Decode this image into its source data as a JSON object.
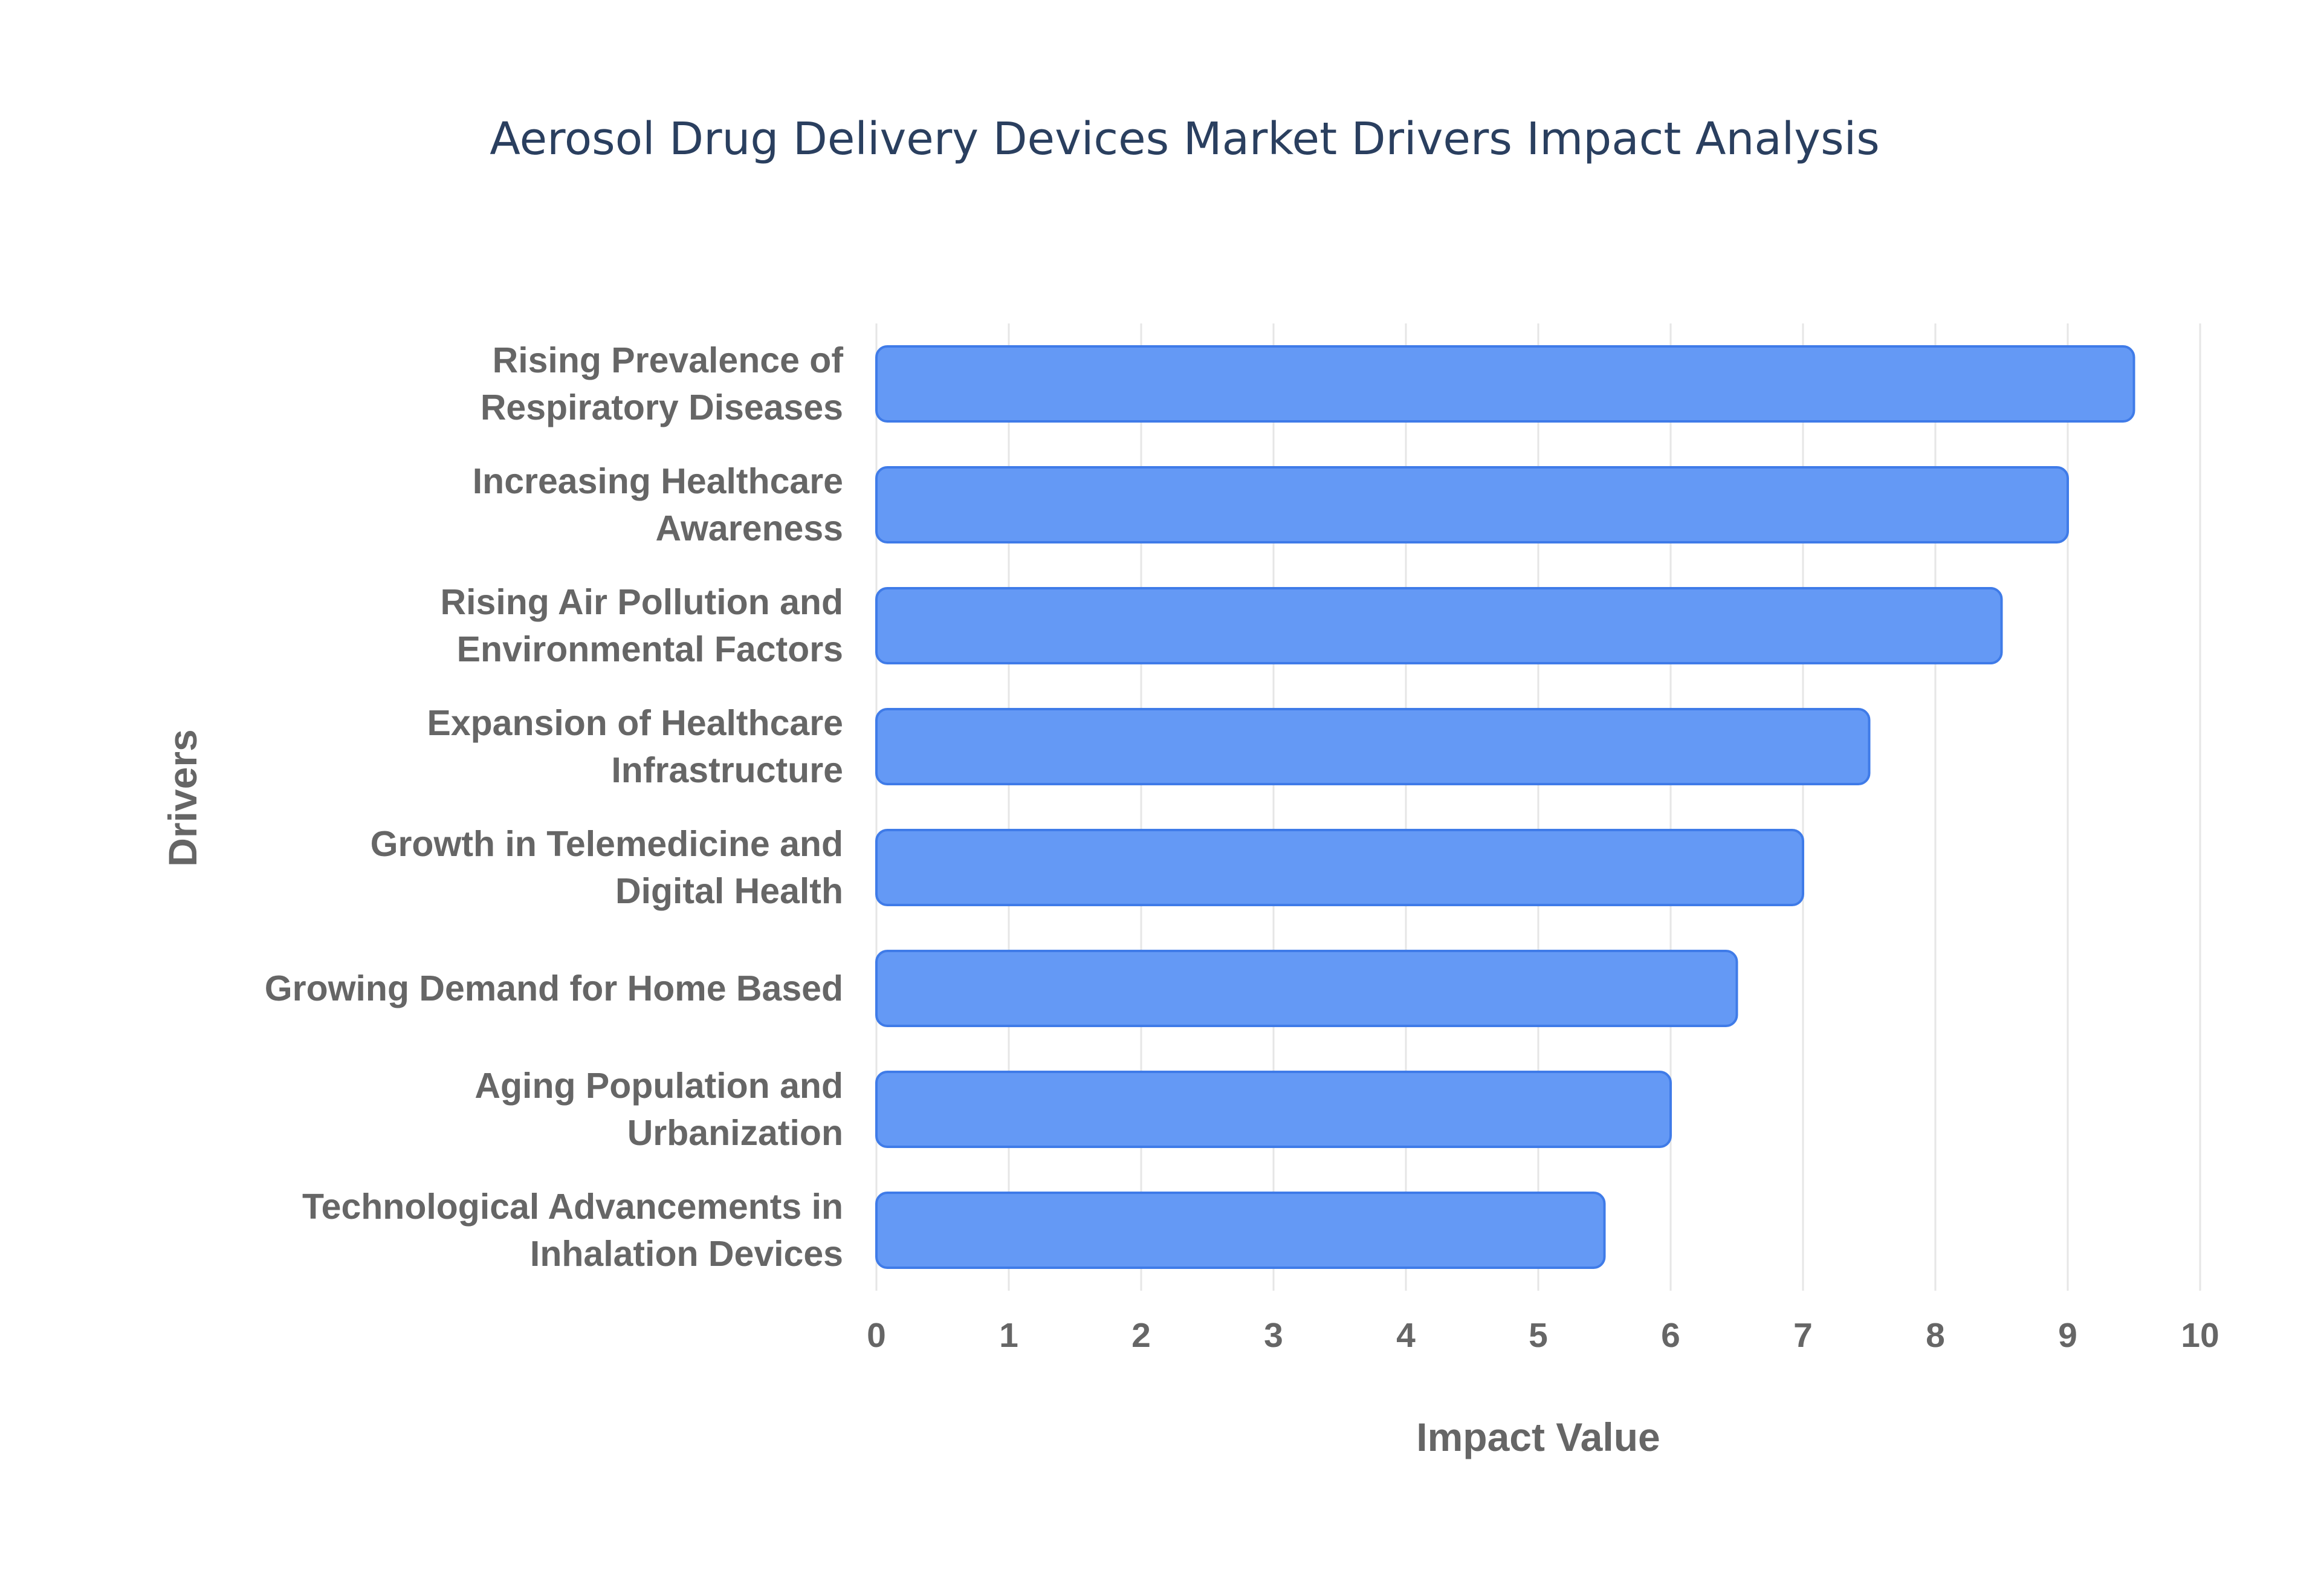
{
  "colors": {
    "bar_fill": "#6499f5",
    "bar_stroke": "#3f7be8",
    "title": "#2a3f5f",
    "axis_text": "#666666",
    "grid": "#e6e6e6"
  },
  "chart_data": {
    "type": "bar",
    "orientation": "horizontal",
    "title": "Aerosol Drug Delivery Devices Market Drivers Impact Analysis",
    "xlabel": "Impact Value",
    "ylabel": "Drivers",
    "xlim": [
      0,
      10
    ],
    "xticks": [
      0,
      1,
      2,
      3,
      4,
      5,
      6,
      7,
      8,
      9,
      10
    ],
    "grid": true,
    "legend": "none",
    "categories": [
      [
        "Rising Prevalence of",
        "Respiratory Diseases"
      ],
      [
        "Increasing Healthcare",
        "Awareness"
      ],
      [
        "Rising Air Pollution and",
        "Environmental Factors"
      ],
      [
        "Expansion of Healthcare",
        "Infrastructure"
      ],
      [
        "Growth in Telemedicine and",
        "Digital Health"
      ],
      [
        "Growing Demand for Home Based"
      ],
      [
        "Aging Population and",
        "Urbanization"
      ],
      [
        "Technological Advancements in",
        "Inhalation Devices"
      ]
    ],
    "values": [
      9.5,
      9,
      8.5,
      7.5,
      7,
      6.5,
      6,
      5.5
    ]
  }
}
